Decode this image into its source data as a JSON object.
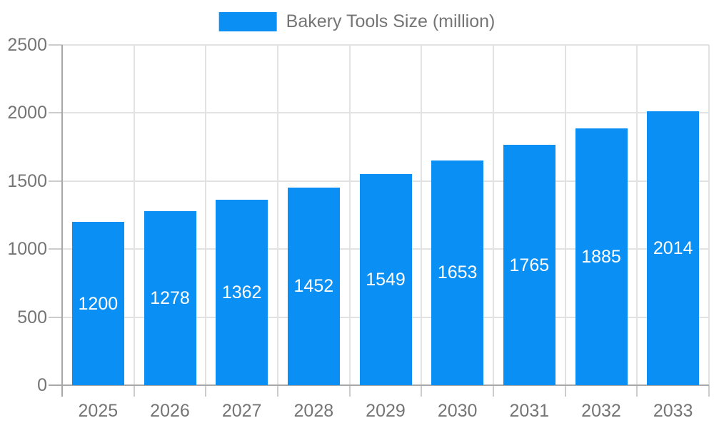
{
  "chart_data": {
    "type": "bar",
    "title": "",
    "legend_label": "Bakery Tools Size (million)",
    "legend_position": "top",
    "categories": [
      "2025",
      "2026",
      "2027",
      "2028",
      "2029",
      "2030",
      "2031",
      "2032",
      "2033"
    ],
    "values": [
      1200,
      1278,
      1362,
      1452,
      1549,
      1653,
      1765,
      1885,
      2014
    ],
    "xlabel": "",
    "ylabel": "",
    "ylim": [
      0,
      2500
    ],
    "yticks": [
      0,
      500,
      1000,
      1500,
      2000,
      2500
    ],
    "grid": true,
    "colors": {
      "bar": "#0a90f5",
      "value_label": "#ffffff",
      "axis_text": "#757575",
      "gridline": "#e2e2e2",
      "tick": "#cccccc",
      "axis_line": "#a8a8a8",
      "background": "#ffffff"
    }
  }
}
